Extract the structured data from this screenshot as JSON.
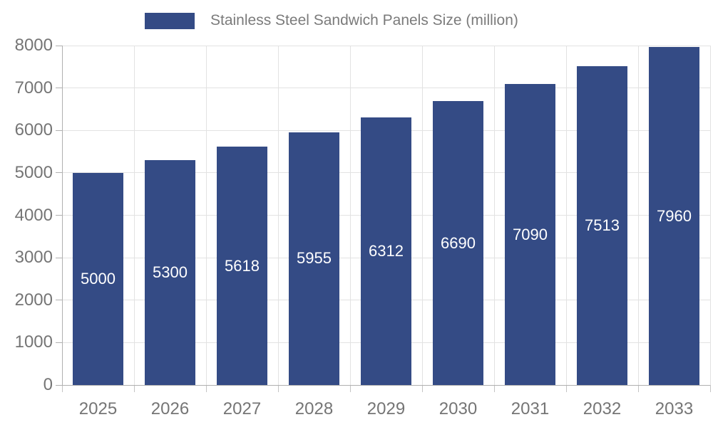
{
  "legend": {
    "label": "Stainless Steel Sandwich Panels Size (million)"
  },
  "chart_data": {
    "type": "bar",
    "title": "Stainless Steel Sandwich Panels Size (million)",
    "categories": [
      "2025",
      "2026",
      "2027",
      "2028",
      "2029",
      "2030",
      "2031",
      "2032",
      "2033"
    ],
    "values": [
      5000,
      5300,
      5618,
      5955,
      6312,
      6690,
      7090,
      7513,
      7960
    ],
    "xlabel": "",
    "ylabel": "",
    "ylim": [
      0,
      8000
    ],
    "yticks": [
      0,
      1000,
      2000,
      3000,
      4000,
      5000,
      6000,
      7000,
      8000
    ],
    "grid": true,
    "legend_position": "top",
    "value_label_position": "inside-center"
  },
  "colors": {
    "bar": "#344b85",
    "grid": "#e2e2e2",
    "axis": "#b0b0b0",
    "tick_label": "#757575",
    "value_label": "#ffffff"
  }
}
